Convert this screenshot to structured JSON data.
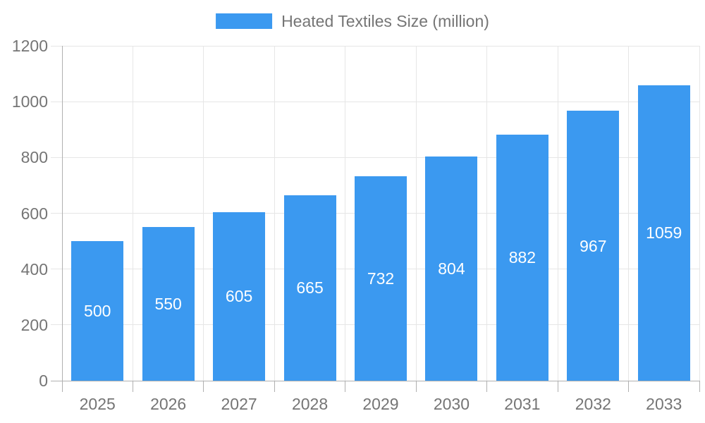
{
  "chart_data": {
    "type": "bar",
    "title": "",
    "series_name": "Heated Textiles Size (million)",
    "categories": [
      "2025",
      "2026",
      "2027",
      "2028",
      "2029",
      "2030",
      "2031",
      "2032",
      "2033"
    ],
    "values": [
      500,
      550,
      605,
      665,
      732,
      804,
      882,
      967,
      1059
    ],
    "xlabel": "",
    "ylabel": "",
    "ylim": [
      0,
      1200
    ],
    "yticks": [
      0,
      200,
      400,
      600,
      800,
      1000,
      1200
    ],
    "grid": "on",
    "legend_position": "top-center",
    "value_label_position": "inside-center",
    "colors": {
      "bar": "#3b99f0",
      "grid": "#e6e6e6",
      "axis": "#b0b0b0",
      "text": "#757575",
      "value_label": "#ffffff"
    }
  }
}
